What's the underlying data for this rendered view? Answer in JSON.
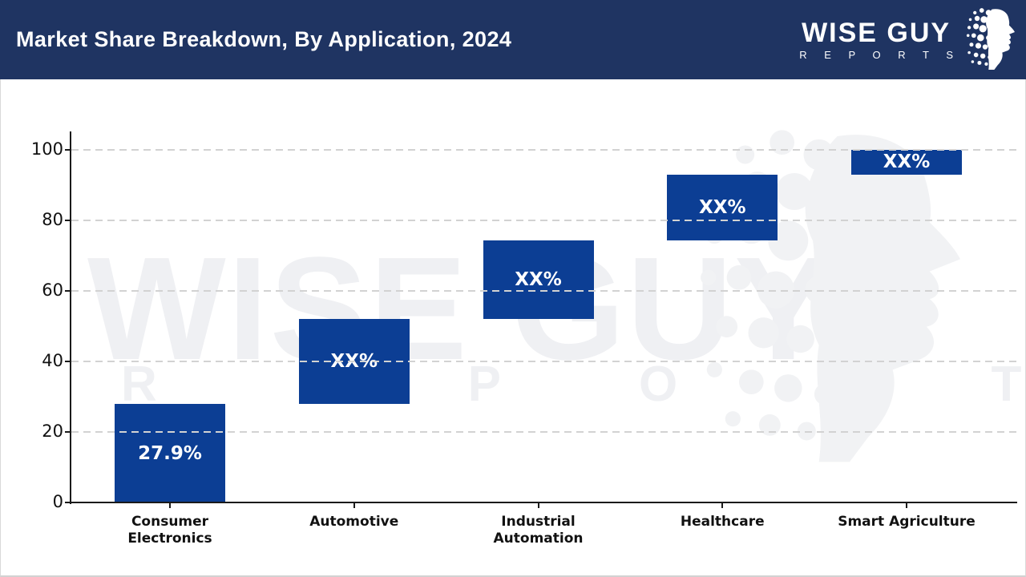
{
  "header": {
    "title": "Market Share Breakdown, By Application, 2024",
    "logo": {
      "line1": "WISE GUY",
      "line2": "R E P O R T S"
    },
    "background_color": "#1f3462",
    "text_color": "#ffffff"
  },
  "watermark": {
    "line1": "WISE GUY",
    "line2": "R E P O R T S"
  },
  "chart_data": {
    "type": "bar",
    "subtype": "waterfall",
    "title": "Market Share Breakdown, By Application, 2024",
    "categories": [
      "Consumer Electronics",
      "Automotive",
      "Industrial Automation",
      "Healthcare",
      "Smart Agriculture"
    ],
    "category_lines": [
      [
        "Consumer",
        "Electronics"
      ],
      [
        "Automotive"
      ],
      [
        "Industrial",
        "Automation"
      ],
      [
        "Healthcare"
      ],
      [
        "Smart Agriculture"
      ]
    ],
    "bars": [
      {
        "category": "Consumer Electronics",
        "label": "27.9%",
        "start": 0,
        "end": 27.9
      },
      {
        "category": "Automotive",
        "label": "XX%",
        "start": 27.9,
        "end": 52.0
      },
      {
        "category": "Industrial Automation",
        "label": "XX%",
        "start": 52.0,
        "end": 74.3
      },
      {
        "category": "Healthcare",
        "label": "XX%",
        "start": 74.3,
        "end": 93.0
      },
      {
        "category": "Smart Agriculture",
        "label": "XX%",
        "start": 93.0,
        "end": 100.0
      }
    ],
    "yticks": [
      0,
      20,
      40,
      60,
      80,
      100
    ],
    "ylim": [
      0,
      105
    ],
    "xlabel": "",
    "ylabel": "",
    "legend_position": "none",
    "grid": "dashed-horizontal",
    "bar_color": "#0c3e94",
    "bar_label_color": "#ffffff",
    "axis_color": "#1a1a1a",
    "gridline_color": "#d2d2d2"
  }
}
